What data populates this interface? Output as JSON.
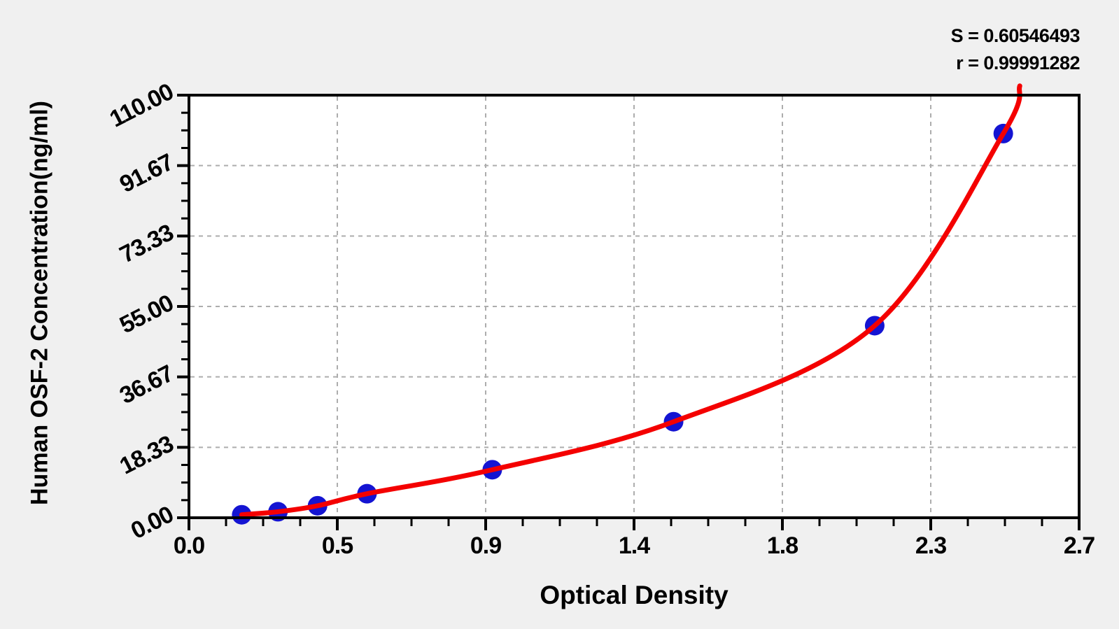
{
  "chart_data": {
    "type": "scatter",
    "title": "",
    "xlabel": "Optical Density",
    "ylabel": "Human OSF-2 Concentration(ng/ml)",
    "xlim": [
      0,
      2.7
    ],
    "ylim": [
      0,
      110
    ],
    "x_tick_labels": [
      "0.0",
      "0.5",
      "0.9",
      "1.4",
      "1.8",
      "2.3",
      "2.7"
    ],
    "y_tick_labels": [
      "0.00",
      "18.33",
      "36.67",
      "55.00",
      "73.33",
      "91.67",
      "110.00"
    ],
    "minor_ticks_between_major": 3,
    "grid": "dashed-major",
    "legend": "none",
    "stats": {
      "s_text": "S = 0.60546493",
      "r_text": "r = 0.99991282",
      "S": 0.60546493,
      "r": 0.99991282
    },
    "point_format": [
      "optical_density",
      "concentration_ng_ml"
    ],
    "series": [
      {
        "name": "standard-points",
        "type": "scatter",
        "color": "#1414d2",
        "points": [
          [
            0.16,
            0.78
          ],
          [
            0.27,
            1.56
          ],
          [
            0.39,
            3.12
          ],
          [
            0.54,
            6.25
          ],
          [
            0.92,
            12.5
          ],
          [
            1.47,
            25
          ],
          [
            2.08,
            50
          ],
          [
            2.47,
            100
          ]
        ]
      },
      {
        "name": "fitted-curve",
        "type": "line",
        "color": "#f40000",
        "curve_end": [
          2.52,
          112.4
        ]
      }
    ],
    "colors": {
      "axis": "#000000",
      "grid": "#adadad",
      "background": "#f0f0f0",
      "plot_background": "#ffffff"
    }
  }
}
